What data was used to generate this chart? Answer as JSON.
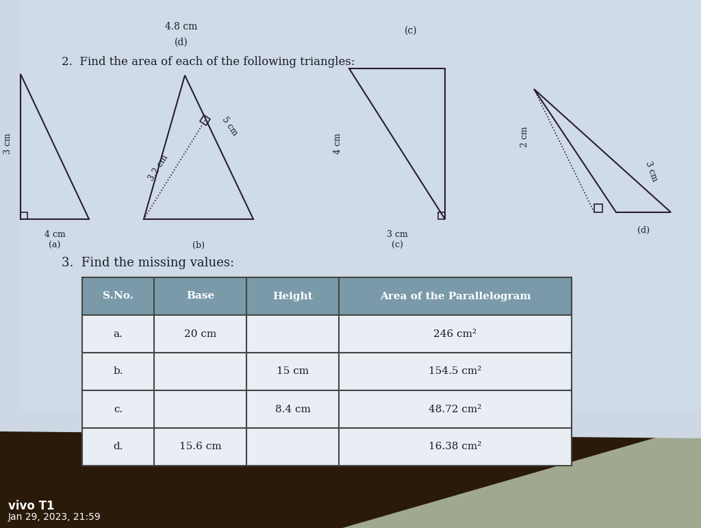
{
  "title3": "3.  Find the missing values:",
  "title2": "2.  Find the area of each of the following triangles:",
  "header": [
    "S.No.",
    "Base",
    "Height",
    "Area of the Parallelogram"
  ],
  "rows": [
    [
      "a.",
      "20 cm",
      "",
      "246 cm²"
    ],
    [
      "b.",
      "",
      "15 cm",
      "154.5 cm²"
    ],
    [
      "c.",
      "",
      "8.4 cm",
      "48.72 cm²"
    ],
    [
      "d.",
      "15.6 cm",
      "",
      "16.38 cm²"
    ]
  ],
  "page_color": "#c8d4e0",
  "paper_color": "#cdd8e4",
  "paper_light": "#d8e4ee",
  "header_bg": "#8aabb8",
  "table_border": "#444444",
  "bg_dark": "#3a2a1a",
  "bg_mid": "#8a7060",
  "bg_light": "#b0b8a8",
  "watermark_color": "#ffffff",
  "text_dark": "#1a1a2a",
  "title_fontsize": 13,
  "header_fontsize": 12,
  "cell_fontsize": 12
}
